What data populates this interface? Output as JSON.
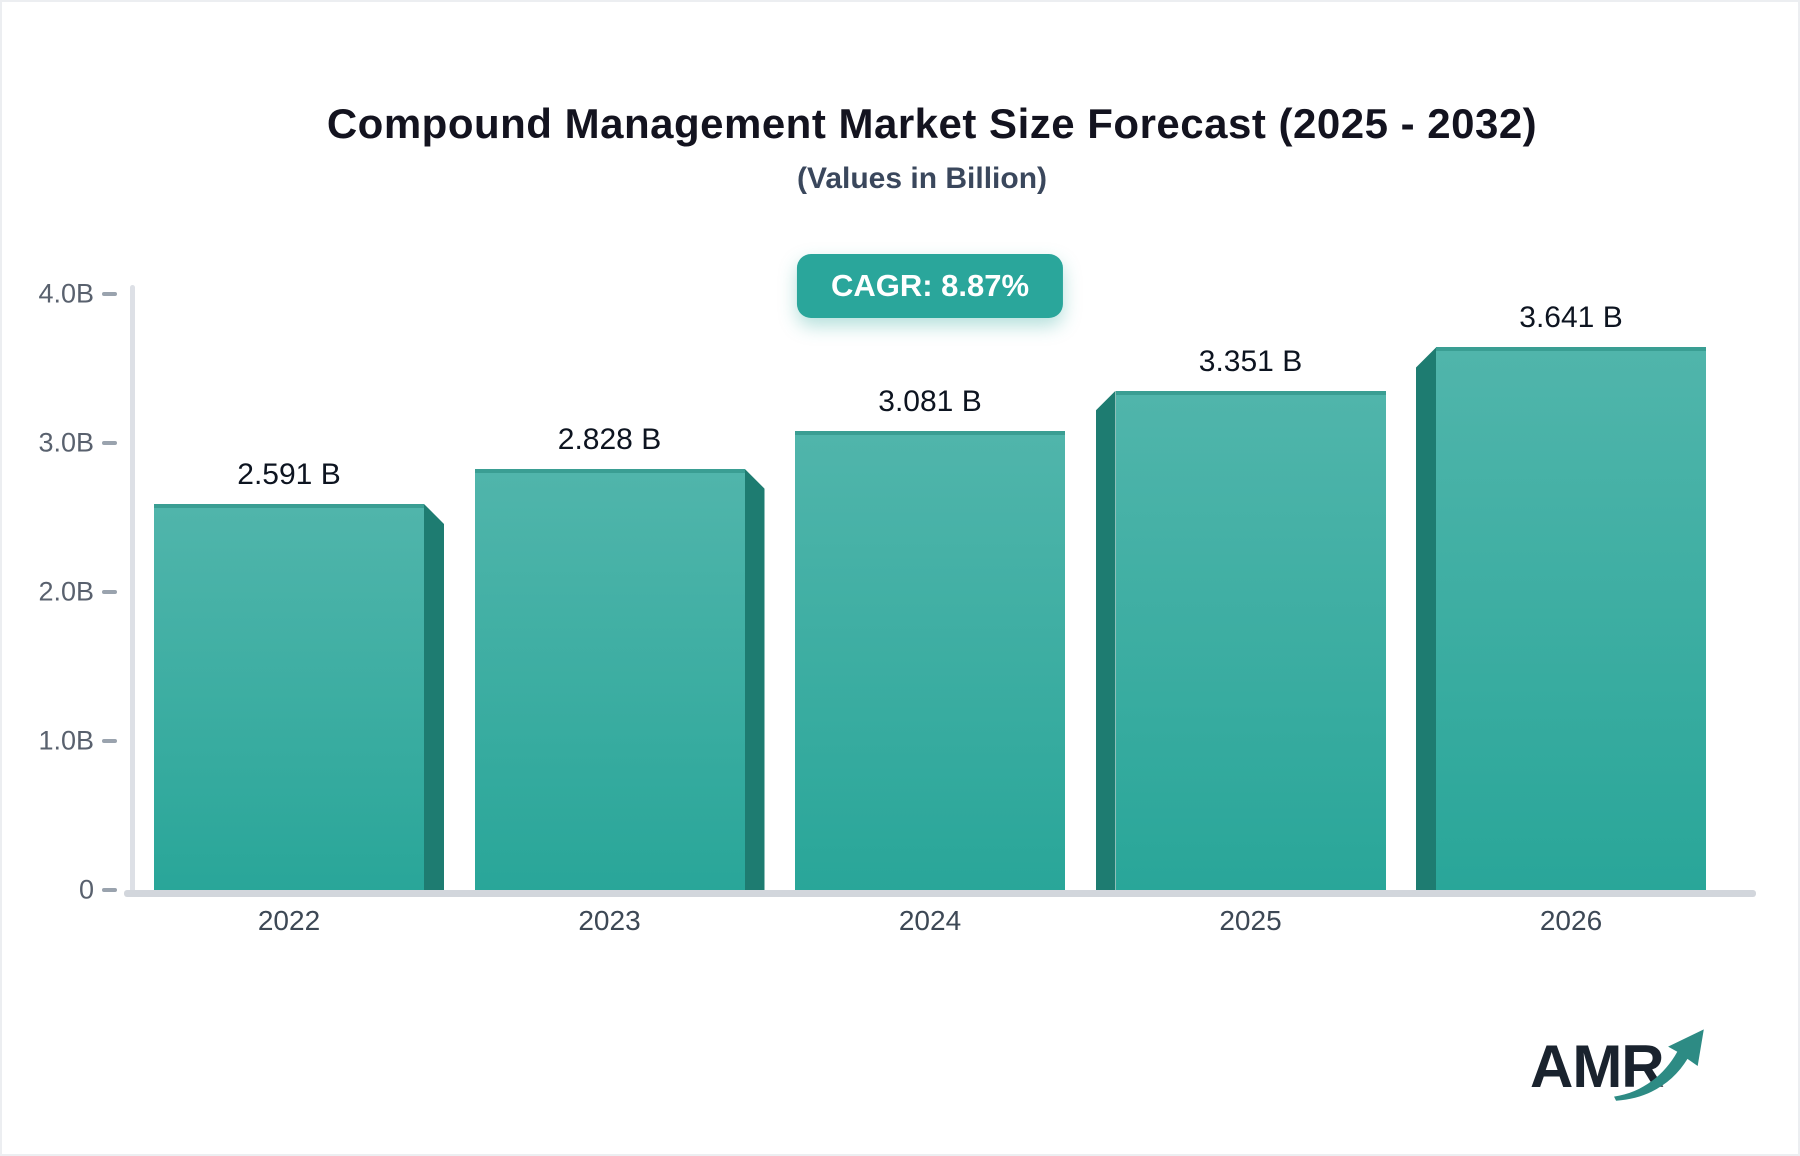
{
  "header": {
    "title": "Compound Management Market Size Forecast (2025 - 2032)",
    "subtitle": "(Values in Billion)"
  },
  "badge": {
    "label": "CAGR: 8.87%",
    "bg_color": "#2aa69b",
    "text_color": "#ffffff"
  },
  "chart_data": {
    "type": "bar",
    "title": "Compound Management Market Size Forecast (2025 - 2032)",
    "subtitle": "(Values in Billion)",
    "annotation": "CAGR: 8.87%",
    "categories": [
      "2022",
      "2023",
      "2024",
      "2025",
      "2026"
    ],
    "values": [
      2.591,
      2.828,
      3.081,
      3.351,
      3.641
    ],
    "value_labels": [
      "2.591 B",
      "2.828 B",
      "3.081 B",
      "3.351 B",
      "3.641 B"
    ],
    "xlabel": "",
    "ylabel": "",
    "ylim": [
      0,
      4
    ],
    "y_ticks": [
      {
        "label": "4.0B",
        "value": 4
      },
      {
        "label": "3.0B",
        "value": 3
      },
      {
        "label": "2.0B",
        "value": 2
      },
      {
        "label": "1.0B",
        "value": 1
      },
      {
        "label": "0",
        "value": 0
      }
    ],
    "grid": false,
    "legend": false,
    "bar_3d_sides": [
      "right",
      "right",
      "none",
      "left",
      "left"
    ],
    "colors": {
      "bar_gradient_top": "#50b5ab",
      "bar_gradient_bottom": "#29a699",
      "bar_top_edge": "#3a9e93",
      "bar_side_dark": "#1e7c71",
      "axis_line": "#dde0e6",
      "baseline": "#d2d6dc",
      "tick_dash": "#9aa3ae",
      "tick_text": "#59616e",
      "category_text": "#3d4855",
      "value_text": "#0d1420"
    }
  },
  "logo": {
    "text": "AMR",
    "arrow_icon": "trend-up-arrow",
    "text_color": "#1a232e",
    "accent_color": "#2d8b84"
  }
}
